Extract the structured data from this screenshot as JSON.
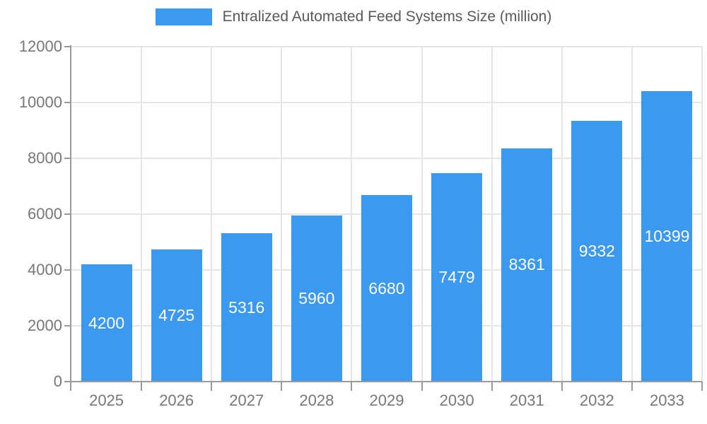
{
  "legend": {
    "label": "Entralized Automated Feed Systems Size (million)"
  },
  "chart_data": {
    "type": "bar",
    "title": "Entralized Automated Feed Systems Size (million)",
    "categories": [
      "2025",
      "2026",
      "2027",
      "2028",
      "2029",
      "2030",
      "2031",
      "2032",
      "2033"
    ],
    "values": [
      4200,
      4725,
      5316,
      5960,
      6680,
      7479,
      8361,
      9332,
      10399
    ],
    "series": [
      {
        "name": "Entralized Automated Feed Systems Size (million)",
        "values": [
          4200,
          4725,
          5316,
          5960,
          6680,
          7479,
          8361,
          9332,
          10399
        ]
      }
    ],
    "xlabel": "",
    "ylabel": "",
    "ylim": [
      0,
      12000
    ],
    "yticks": [
      0,
      2000,
      4000,
      6000,
      8000,
      10000,
      12000
    ],
    "grid": true,
    "legend_position": "top",
    "bar_labels_inside": true,
    "colors": {
      "bar": "#3b99f0",
      "bar_label": "#ffffff",
      "grid_line": "#e5e5e5",
      "axis_line": "#9a9a9a",
      "tick_label": "#777777",
      "legend_text": "#595959",
      "background": "#ffffff"
    }
  }
}
